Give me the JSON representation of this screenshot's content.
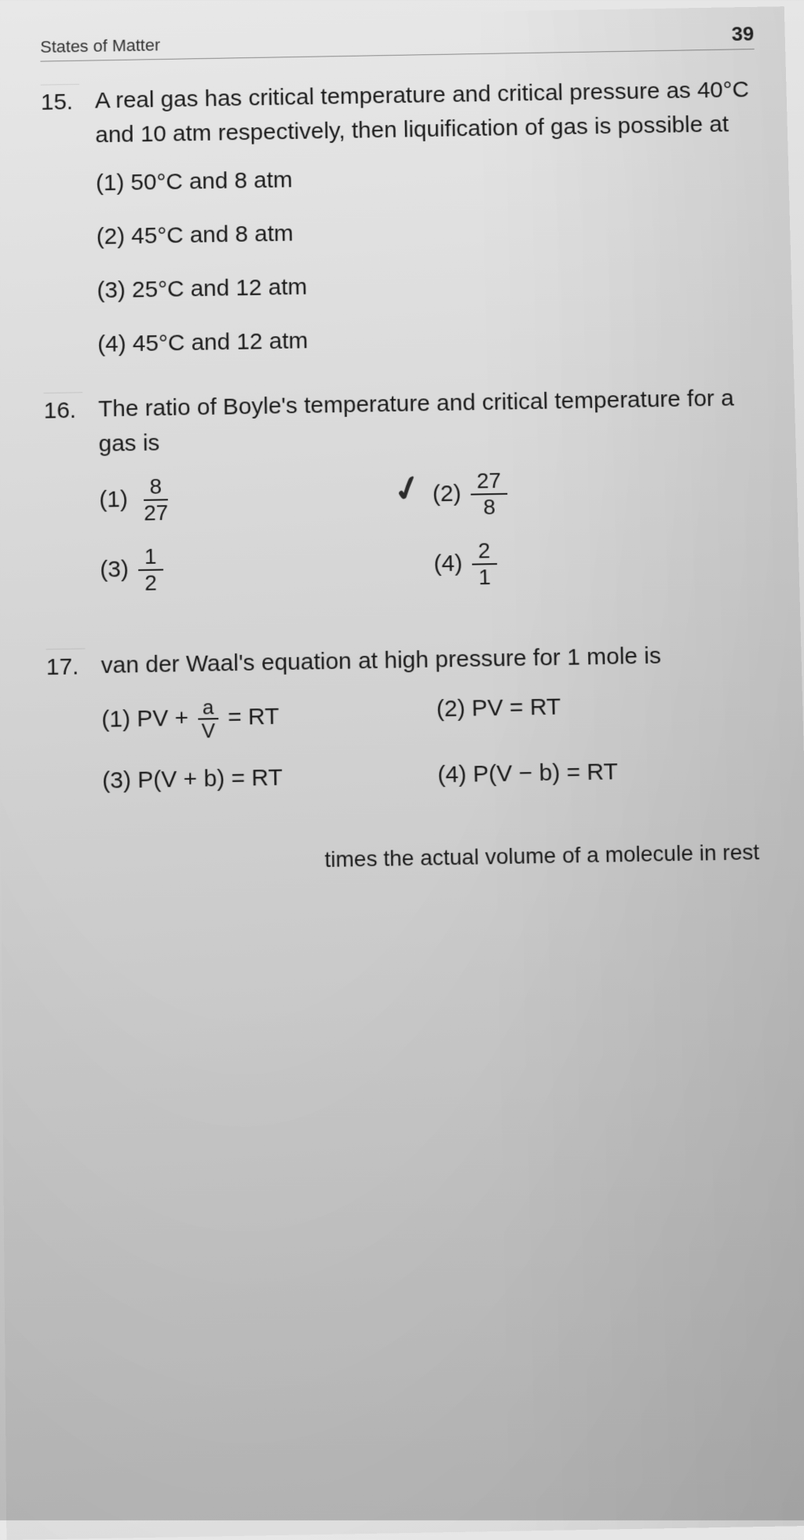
{
  "header": {
    "section_title": "States of Matter",
    "page_number": "39"
  },
  "questions": [
    {
      "number": "15.",
      "text": "A real gas has critical temperature and critical pressure as 40°C and 10 atm respectively, then liquification of gas is possible at",
      "layout": "single",
      "options": [
        {
          "label": "(1)",
          "text": "50°C and 8 atm"
        },
        {
          "label": "(2)",
          "text": "45°C and 8 atm"
        },
        {
          "label": "(3)",
          "text": "25°C and 12 atm"
        },
        {
          "label": "(4)",
          "text": "45°C and 12 atm"
        }
      ]
    },
    {
      "number": "16.",
      "text": "The ratio of Boyle's temperature and critical temperature for a gas is",
      "layout": "two-col-frac",
      "options": [
        {
          "label": "(1)",
          "numerator": "8",
          "denominator": "27"
        },
        {
          "label": "(2)",
          "numerator": "27",
          "denominator": "8",
          "checked": true
        },
        {
          "label": "(3)",
          "numerator": "1",
          "denominator": "2"
        },
        {
          "label": "(4)",
          "numerator": "2",
          "denominator": "1"
        }
      ]
    },
    {
      "number": "17.",
      "text": "van der Waal's equation at high pressure for 1 mole is",
      "layout": "two-col-eq",
      "options": [
        {
          "label": "(1)",
          "pre": "PV + ",
          "frac_num": "a",
          "frac_den": "V",
          "post": " = RT"
        },
        {
          "label": "(2)",
          "plain": "PV = RT"
        },
        {
          "label": "(3)",
          "plain": "P(V + b) = RT"
        },
        {
          "label": "(4)",
          "plain": "P(V − b) = RT"
        }
      ]
    }
  ],
  "footer_partial": "times the actual volume of a molecule in rest",
  "colors": {
    "text": "#1a1a1a",
    "bg_light": "#e8e8e8",
    "bg_dark": "#b8b8b8"
  }
}
